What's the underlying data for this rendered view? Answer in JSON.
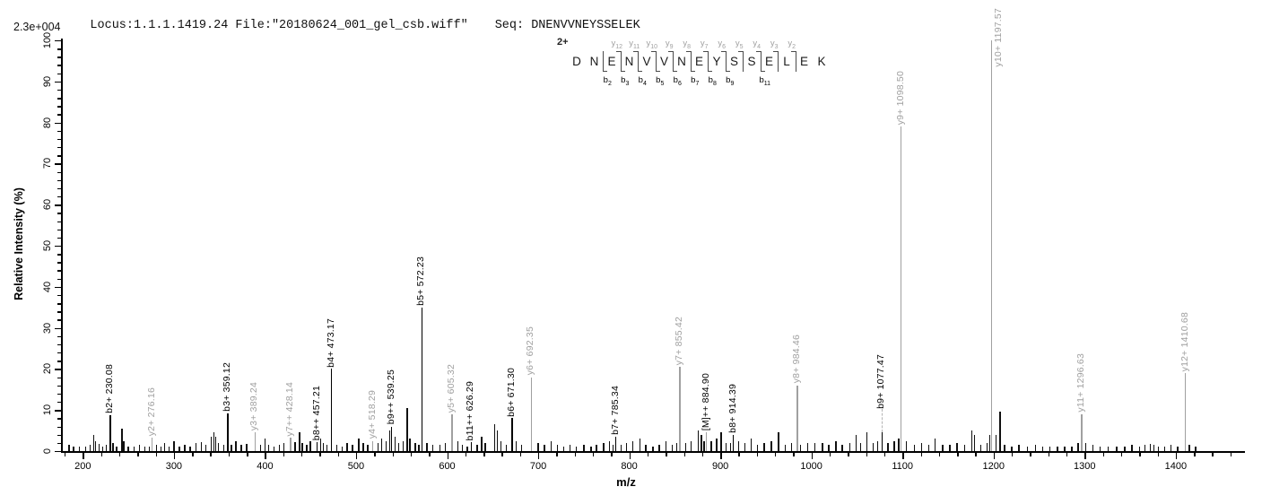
{
  "header": {
    "locus_file": "Locus:1.1.1.1419.24 File:\"20180624_001_gel_csb.wiff\"",
    "seq_label": "Seq: DNENVVNEYSSELEK",
    "base_intensity": "2.3e+004"
  },
  "colors": {
    "b_ion": "#000000",
    "y_ion": "#a0a0a0",
    "mixed_label": "#000000",
    "noise": "#101010",
    "axis": "#000000"
  },
  "chart_data": {
    "type": "bar",
    "title": "MS/MS fragment ion spectrum",
    "xlabel": "m/z",
    "ylabel": "Relative  Intensity (%)",
    "x_range": [
      178,
      1475
    ],
    "y_range": [
      0,
      100
    ],
    "x_major_ticks": [
      200,
      300,
      400,
      500,
      600,
      700,
      800,
      900,
      1000,
      1100,
      1200,
      1300,
      1400
    ],
    "x_minor_step": 20,
    "y_major_ticks": [
      0,
      10,
      20,
      30,
      40,
      50,
      60,
      70,
      80,
      90,
      100
    ],
    "y_minor_step": 2,
    "grid": "off",
    "base_peak_intensity": "2.3e+004",
    "sequence": {
      "charge_label": "2+",
      "residues": [
        "D",
        "N",
        "E",
        "N",
        "V",
        "V",
        "N",
        "E",
        "Y",
        "S",
        "S",
        "E",
        "L",
        "E",
        "K"
      ],
      "cleavages": [
        {
          "pos": 2,
          "b_sub": "2"
        },
        {
          "pos": 3,
          "y_sub": "12",
          "b_sub": "3"
        },
        {
          "pos": 4,
          "y_sub": "11",
          "b_sub": "4"
        },
        {
          "pos": 5,
          "y_sub": "10",
          "b_sub": "5"
        },
        {
          "pos": 6,
          "y_sub": "9",
          "b_sub": "6"
        },
        {
          "pos": 7,
          "y_sub": "8",
          "b_sub": "7"
        },
        {
          "pos": 8,
          "y_sub": "7",
          "b_sub": "8"
        },
        {
          "pos": 9,
          "y_sub": "6",
          "b_sub": "9"
        },
        {
          "pos": 10,
          "y_sub": "5"
        },
        {
          "pos": 11,
          "y_sub": "4",
          "b_sub": "11"
        },
        {
          "pos": 12,
          "y_sub": "3"
        },
        {
          "pos": 13,
          "y_sub": "2"
        }
      ]
    },
    "labeled_peaks": [
      {
        "label": "b2+ 230.08",
        "mz": 230.08,
        "intensity": 8.7,
        "series": "b"
      },
      {
        "label": "y2+ 276.16",
        "mz": 276.16,
        "intensity": 3.2,
        "series": "y"
      },
      {
        "label": "b3+ 359.12",
        "mz": 359.12,
        "intensity": 9.2,
        "series": "b"
      },
      {
        "label": "y3+ 389.24",
        "mz": 389.24,
        "intensity": 4.5,
        "series": "y"
      },
      {
        "label": "y7++ 428.14",
        "mz": 428.14,
        "intensity": 3.2,
        "series": "y"
      },
      {
        "label": "b8++ 457.21",
        "mz": 457.21,
        "intensity": 2.2,
        "series": "b"
      },
      {
        "label": "b4+ 473.17",
        "mz": 473.17,
        "intensity": 20,
        "series": "b"
      },
      {
        "label": "y4+ 518.29",
        "mz": 518.29,
        "intensity": 2.5,
        "series": "y"
      },
      {
        "label": "b9++ 539.25",
        "mz": 539.25,
        "intensity": 6,
        "series": "b"
      },
      {
        "label": "b5+ 572.23",
        "mz": 572.23,
        "intensity": 35,
        "series": "b"
      },
      {
        "label": "y5+ 605.32",
        "mz": 605.32,
        "intensity": 9,
        "series": "y"
      },
      {
        "label": "b11++ 626.29",
        "mz": 626.29,
        "intensity": 2.2,
        "series": "b"
      },
      {
        "label": "b6+ 671.30",
        "mz": 671.3,
        "intensity": 8,
        "series": "b"
      },
      {
        "label": "y6+ 692.35",
        "mz": 692.35,
        "intensity": 18,
        "series": "y"
      },
      {
        "label": "b7+ 785.34",
        "mz": 785.34,
        "intensity": 3.5,
        "series": "b"
      },
      {
        "label": "y7+ 855.42",
        "mz": 855.42,
        "intensity": 20.5,
        "series": "y"
      },
      {
        "label": "[M]++ 884.90",
        "mz": 884.9,
        "intensity": 4.5,
        "series": "M"
      },
      {
        "label": "b8+ 914.39",
        "mz": 914.39,
        "intensity": 4,
        "series": "b"
      },
      {
        "label": "y8+ 984.46",
        "mz": 984.46,
        "intensity": 16,
        "series": "y"
      },
      {
        "label": "b9+ 1077.47",
        "mz": 1077.47,
        "intensity": 4.5,
        "series": "b",
        "connector": 26
      },
      {
        "label": "y9+ 1098.50",
        "mz": 1098.5,
        "intensity": 79,
        "series": "y"
      },
      {
        "label": "y10+ 1197.57",
        "mz": 1197.57,
        "intensity": 100,
        "series": "y"
      },
      {
        "label": "y11+ 1296.63",
        "mz": 1296.63,
        "intensity": 9,
        "series": "y"
      },
      {
        "label": "y12+ 1410.68",
        "mz": 1410.68,
        "intensity": 19,
        "series": "y"
      }
    ],
    "noise_peaks": [
      [
        185,
        1.5
      ],
      [
        190,
        1
      ],
      [
        196,
        1.2
      ],
      [
        203,
        1
      ],
      [
        208,
        1.5
      ],
      [
        212,
        4
      ],
      [
        214,
        2.5
      ],
      [
        218,
        1.8
      ],
      [
        222,
        1
      ],
      [
        226,
        1.5
      ],
      [
        233,
        2
      ],
      [
        237,
        1.2
      ],
      [
        243,
        5.5
      ],
      [
        245,
        2.5
      ],
      [
        250,
        1
      ],
      [
        256,
        1.2
      ],
      [
        262,
        1.5
      ],
      [
        268,
        1
      ],
      [
        273,
        1.2
      ],
      [
        281,
        1.5
      ],
      [
        286,
        1.2
      ],
      [
        290,
        2
      ],
      [
        295,
        1.2
      ],
      [
        300,
        2.3
      ],
      [
        306,
        1
      ],
      [
        312,
        1.5
      ],
      [
        318,
        1.2
      ],
      [
        324,
        2
      ],
      [
        330,
        2.2
      ],
      [
        335,
        1.5
      ],
      [
        341,
        3.5
      ],
      [
        344,
        4.5
      ],
      [
        346,
        3.5
      ],
      [
        349,
        2
      ],
      [
        355,
        1.5
      ],
      [
        363,
        1.5
      ],
      [
        368,
        2.5
      ],
      [
        374,
        1.5
      ],
      [
        380,
        1.8
      ],
      [
        395,
        1.5
      ],
      [
        400,
        3
      ],
      [
        404,
        1.5
      ],
      [
        410,
        1.2
      ],
      [
        416,
        1.5
      ],
      [
        421,
        2
      ],
      [
        433,
        2.2
      ],
      [
        438,
        4.5
      ],
      [
        441,
        2
      ],
      [
        446,
        1.5
      ],
      [
        450,
        2.5
      ],
      [
        461,
        3
      ],
      [
        464,
        2
      ],
      [
        468,
        1.5
      ],
      [
        479,
        1.5
      ],
      [
        485,
        1.2
      ],
      [
        490,
        2
      ],
      [
        496,
        1.5
      ],
      [
        503,
        3
      ],
      [
        508,
        2
      ],
      [
        513,
        1.5
      ],
      [
        524,
        2
      ],
      [
        528,
        3
      ],
      [
        533,
        2.5
      ],
      [
        537,
        5
      ],
      [
        543,
        3.5
      ],
      [
        547,
        2
      ],
      [
        552,
        2.5
      ],
      [
        556,
        10.5
      ],
      [
        559,
        3
      ],
      [
        565,
        2
      ],
      [
        569,
        1.5
      ],
      [
        578,
        2
      ],
      [
        584,
        1.5
      ],
      [
        592,
        1.5
      ],
      [
        598,
        2
      ],
      [
        612,
        2.5
      ],
      [
        617,
        1.5
      ],
      [
        622,
        1.2
      ],
      [
        633,
        1.5
      ],
      [
        638,
        3.5
      ],
      [
        642,
        2
      ],
      [
        652,
        6.5
      ],
      [
        655,
        5
      ],
      [
        659,
        2.5
      ],
      [
        665,
        1.5
      ],
      [
        676,
        2.5
      ],
      [
        682,
        1.5
      ],
      [
        700,
        2
      ],
      [
        707,
        1.5
      ],
      [
        714,
        2.5
      ],
      [
        721,
        1.5
      ],
      [
        728,
        1
      ],
      [
        735,
        1.5
      ],
      [
        742,
        1.2
      ],
      [
        750,
        1.5
      ],
      [
        758,
        1
      ],
      [
        764,
        1.5
      ],
      [
        772,
        2
      ],
      [
        778,
        2.5
      ],
      [
        782,
        1.5
      ],
      [
        791,
        1.5
      ],
      [
        797,
        2
      ],
      [
        804,
        2.5
      ],
      [
        812,
        3
      ],
      [
        818,
        1.5
      ],
      [
        826,
        1.2
      ],
      [
        833,
        1.5
      ],
      [
        840,
        2.5
      ],
      [
        847,
        1.5
      ],
      [
        852,
        2
      ],
      [
        862,
        2
      ],
      [
        868,
        2.5
      ],
      [
        876,
        5
      ],
      [
        879,
        4
      ],
      [
        882,
        2.5
      ],
      [
        890,
        2.5
      ],
      [
        896,
        3
      ],
      [
        901,
        4.5
      ],
      [
        906,
        2
      ],
      [
        911,
        2
      ],
      [
        920,
        2.5
      ],
      [
        927,
        2
      ],
      [
        934,
        3
      ],
      [
        941,
        1.5
      ],
      [
        948,
        2
      ],
      [
        956,
        2.5
      ],
      [
        964,
        4.5
      ],
      [
        971,
        1.5
      ],
      [
        978,
        2
      ],
      [
        988,
        1.5
      ],
      [
        996,
        2
      ],
      [
        1004,
        2
      ],
      [
        1012,
        2
      ],
      [
        1019,
        1.5
      ],
      [
        1027,
        2.5
      ],
      [
        1034,
        1.5
      ],
      [
        1042,
        2
      ],
      [
        1049,
        4
      ],
      [
        1054,
        2
      ],
      [
        1061,
        4.5
      ],
      [
        1068,
        2
      ],
      [
        1073,
        2.5
      ],
      [
        1084,
        2
      ],
      [
        1091,
        2.5
      ],
      [
        1096,
        3
      ],
      [
        1104,
        2.5
      ],
      [
        1113,
        1.5
      ],
      [
        1121,
        2
      ],
      [
        1129,
        1.5
      ],
      [
        1136,
        3
      ],
      [
        1144,
        1.5
      ],
      [
        1152,
        1.5
      ],
      [
        1160,
        2
      ],
      [
        1168,
        1.5
      ],
      [
        1176,
        5
      ],
      [
        1179,
        4
      ],
      [
        1186,
        1.5
      ],
      [
        1193,
        2
      ],
      [
        1196,
        4
      ],
      [
        1203,
        4
      ],
      [
        1207,
        9.5
      ],
      [
        1212,
        1.5
      ],
      [
        1220,
        1
      ],
      [
        1228,
        1.5
      ],
      [
        1237,
        1
      ],
      [
        1246,
        1.5
      ],
      [
        1254,
        1
      ],
      [
        1262,
        1.2
      ],
      [
        1270,
        1
      ],
      [
        1278,
        1.2
      ],
      [
        1286,
        1
      ],
      [
        1293,
        2
      ],
      [
        1301,
        2
      ],
      [
        1309,
        1.5
      ],
      [
        1317,
        1
      ],
      [
        1326,
        1
      ],
      [
        1335,
        1
      ],
      [
        1344,
        1.2
      ],
      [
        1352,
        1.5
      ],
      [
        1360,
        1
      ],
      [
        1366,
        1.5
      ],
      [
        1372,
        1.8
      ],
      [
        1376,
        1.5
      ],
      [
        1381,
        1.2
      ],
      [
        1388,
        1
      ],
      [
        1395,
        1.5
      ],
      [
        1402,
        1
      ],
      [
        1415,
        1.5
      ],
      [
        1422,
        1
      ]
    ]
  }
}
